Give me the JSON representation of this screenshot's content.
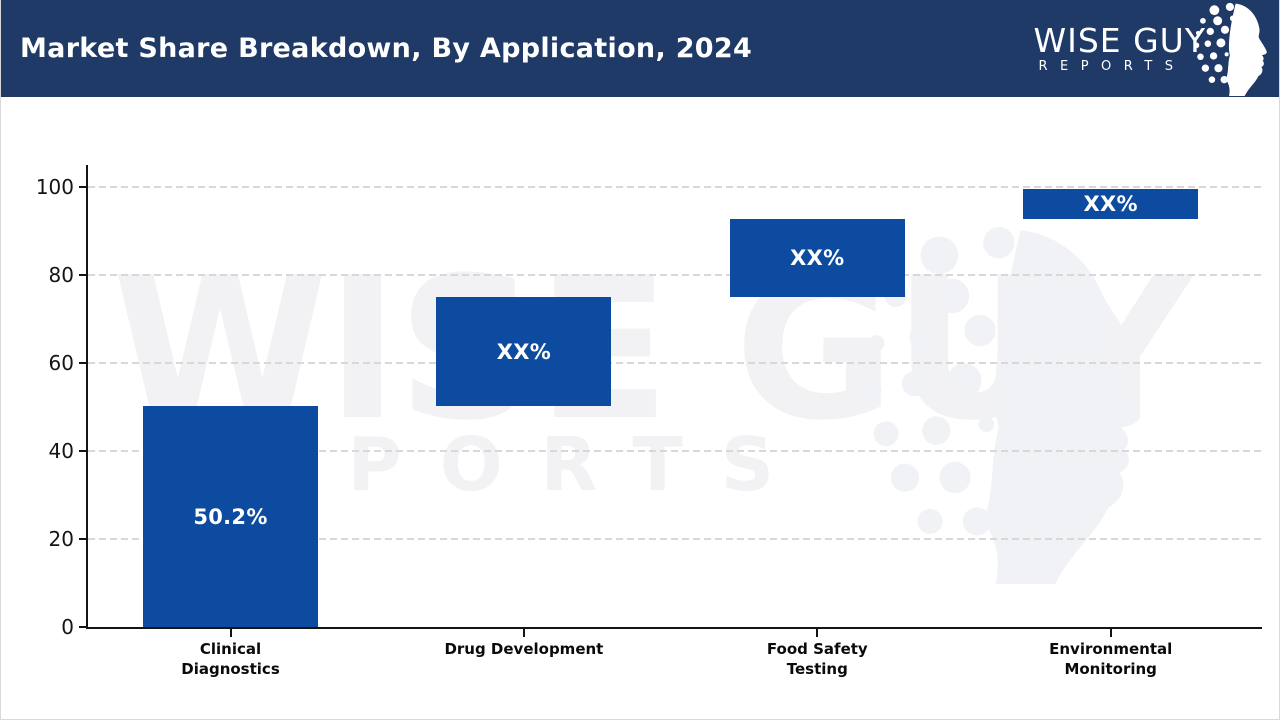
{
  "header": {
    "title": "Market Share Breakdown, By Application, 2024",
    "logo": {
      "line1": "WISE GUY",
      "line2": "REPORTS"
    }
  },
  "watermark": {
    "line1": "WISE GUY",
    "line2": "REPORTS"
  },
  "colors": {
    "header_bg": "#1f3a67",
    "bar": "#0d4ba0",
    "grid": "#d8d8d8",
    "axis": "#141414",
    "bar_label": "#ffffff",
    "watermark": "#f2f2f4"
  },
  "chart_data": {
    "type": "bar",
    "subtype": "waterfall",
    "title": "Market Share Breakdown, By Application, 2024",
    "unit": "%",
    "categories": [
      "Clinical Diagnostics",
      "Drug Development",
      "Food Safety Testing",
      "Environmental Monitoring"
    ],
    "category_lines": [
      [
        "Clinical",
        "Diagnostics"
      ],
      [
        "Drug Development"
      ],
      [
        "Food Safety",
        "Testing"
      ],
      [
        "Environmental",
        "Monitoring"
      ]
    ],
    "segments": [
      {
        "category": "Clinical Diagnostics",
        "start": 0,
        "end": 50.2,
        "label": "50.2%"
      },
      {
        "category": "Drug Development",
        "start": 50.2,
        "end": 75.0,
        "label": "XX%"
      },
      {
        "category": "Food Safety Testing",
        "start": 75.0,
        "end": 92.8,
        "label": "XX%"
      },
      {
        "category": "Environmental Monitoring",
        "start": 92.8,
        "end": 99.5,
        "label": "XX%"
      }
    ],
    "ylim": [
      0,
      100
    ],
    "yticks": [
      0,
      20,
      40,
      60,
      80,
      100
    ],
    "xlabel": "",
    "ylabel": "",
    "grid": "horizontal-dashed",
    "legend": "none"
  }
}
